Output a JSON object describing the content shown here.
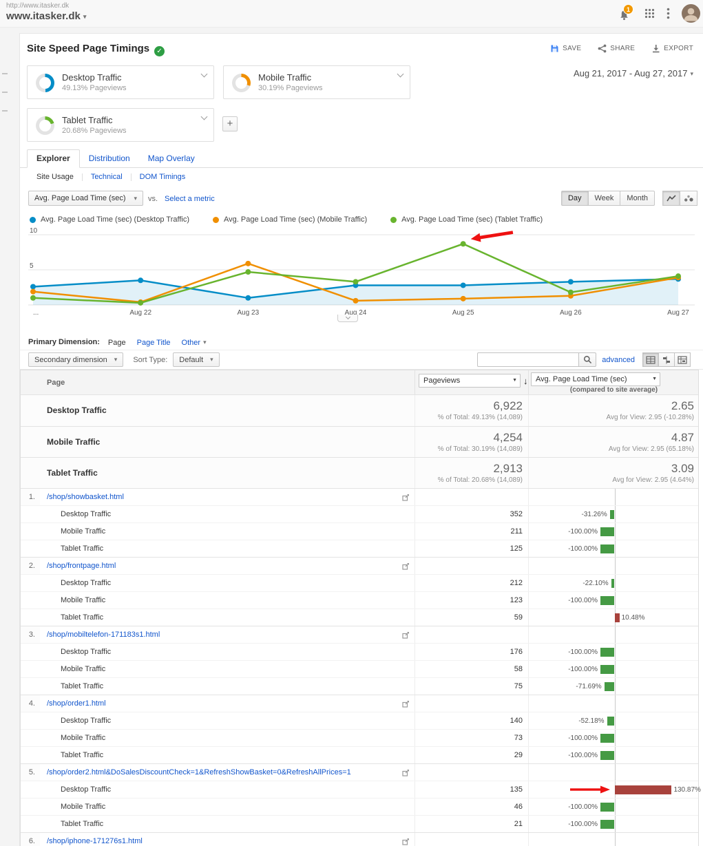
{
  "topbar": {
    "url": "http://www.itasker.dk",
    "account_name": "www.itasker.dk",
    "notification_count": "1"
  },
  "report": {
    "title": "Site Speed Page Timings",
    "actions": {
      "save": "SAVE",
      "share": "SHARE",
      "export": "EXPORT"
    },
    "date_range": "Aug 21, 2017 - Aug 27, 2017"
  },
  "segments": [
    {
      "name": "Desktop Traffic",
      "detail": "49.13% Pageviews",
      "percent": 49.13,
      "color": "#058dc7"
    },
    {
      "name": "Mobile Traffic",
      "detail": "30.19% Pageviews",
      "percent": 30.19,
      "color": "#f08f00"
    },
    {
      "name": "Tablet Traffic",
      "detail": "20.68% Pageviews",
      "percent": 20.68,
      "color": "#68b42e"
    }
  ],
  "tabs": [
    {
      "label": "Explorer",
      "active": true
    },
    {
      "label": "Distribution",
      "active": false
    },
    {
      "label": "Map Overlay",
      "active": false
    }
  ],
  "subtabs": [
    {
      "label": "Site Usage",
      "active": true
    },
    {
      "label": "Technical",
      "active": false
    },
    {
      "label": "DOM Timings",
      "active": false
    }
  ],
  "metric_bar": {
    "metric_select": "Avg. Page Load Time (sec)",
    "vs_label": "vs.",
    "select_metric_link": "Select a metric",
    "granularity": [
      {
        "label": "Day",
        "active": true
      },
      {
        "label": "Week",
        "active": false
      },
      {
        "label": "Month",
        "active": false
      }
    ]
  },
  "chart_data": {
    "type": "line",
    "x": [
      "Aug 21",
      "Aug 22",
      "Aug 23",
      "Aug 24",
      "Aug 25",
      "Aug 26",
      "Aug 27"
    ],
    "x_tick_labels": [
      "...",
      "Aug 22",
      "Aug 23",
      "Aug 24",
      "Aug 25",
      "Aug 26",
      "Aug 27"
    ],
    "ylim": [
      0,
      10
    ],
    "yticks": [
      5,
      10
    ],
    "series": [
      {
        "name": "Avg. Page Load Time (sec) (Desktop Traffic)",
        "color": "#058dc7",
        "area": true,
        "values": [
          2.6,
          3.5,
          1.0,
          2.8,
          2.8,
          3.3,
          3.7
        ]
      },
      {
        "name": "Avg. Page Load Time (sec) (Mobile Traffic)",
        "color": "#f08f00",
        "area": false,
        "values": [
          1.9,
          0.4,
          5.9,
          0.6,
          0.9,
          1.3,
          3.9
        ]
      },
      {
        "name": "Avg. Page Load Time (sec) (Tablet Traffic)",
        "color": "#68b42e",
        "area": false,
        "values": [
          1.0,
          0.3,
          4.7,
          3.3,
          8.7,
          1.8,
          4.1
        ]
      }
    ],
    "annotation": {
      "type": "arrow",
      "series": 2,
      "point": 4,
      "color": "#ee1111"
    }
  },
  "primary_dimension": {
    "label": "Primary Dimension:",
    "options": [
      {
        "label": "Page",
        "active": true,
        "caret": false
      },
      {
        "label": "Page Title",
        "active": false,
        "caret": false
      },
      {
        "label": "Other",
        "active": false,
        "caret": true
      }
    ]
  },
  "table_toolbar": {
    "secondary_dimension": "Secondary dimension",
    "sort_type_label": "Sort Type:",
    "sort_type_value": "Default",
    "search_value": "",
    "advanced_link": "advanced"
  },
  "table": {
    "columns": {
      "page": "Page",
      "pageviews": "Pageviews",
      "metric": "Avg. Page Load Time (sec)",
      "metric_note": "(compared to site average)"
    },
    "summary_rows": [
      {
        "name": "Desktop Traffic",
        "pageviews": "6,922",
        "pageviews_note": "% of Total: 49.13% (14,089)",
        "metric": "2.65",
        "metric_note": "Avg for View: 2.95 (-10.28%)"
      },
      {
        "name": "Mobile Traffic",
        "pageviews": "4,254",
        "pageviews_note": "% of Total: 30.19% (14,089)",
        "metric": "4.87",
        "metric_note": "Avg for View: 2.95 (65.18%)"
      },
      {
        "name": "Tablet Traffic",
        "pageviews": "2,913",
        "pageviews_note": "% of Total: 20.68% (14,089)",
        "metric": "3.09",
        "metric_note": "Avg for View: 2.95 (4.64%)"
      }
    ],
    "rows": [
      {
        "index": "1.",
        "page": "/shop/showbasket.html",
        "segments": [
          {
            "name": "Desktop Traffic",
            "pageviews": "352",
            "pct": -31.26,
            "pct_label": "-31.26%"
          },
          {
            "name": "Mobile Traffic",
            "pageviews": "211",
            "pct": -100.0,
            "pct_label": "-100.00%"
          },
          {
            "name": "Tablet Traffic",
            "pageviews": "125",
            "pct": -100.0,
            "pct_label": "-100.00%"
          }
        ]
      },
      {
        "index": "2.",
        "page": "/shop/frontpage.html",
        "segments": [
          {
            "name": "Desktop Traffic",
            "pageviews": "212",
            "pct": -22.1,
            "pct_label": "-22.10%"
          },
          {
            "name": "Mobile Traffic",
            "pageviews": "123",
            "pct": -100.0,
            "pct_label": "-100.00%"
          },
          {
            "name": "Tablet Traffic",
            "pageviews": "59",
            "pct": 10.48,
            "pct_label": "10.48%"
          }
        ]
      },
      {
        "index": "3.",
        "page": "/shop/mobiltelefon-171183s1.html",
        "segments": [
          {
            "name": "Desktop Traffic",
            "pageviews": "176",
            "pct": -100.0,
            "pct_label": "-100.00%"
          },
          {
            "name": "Mobile Traffic",
            "pageviews": "58",
            "pct": -100.0,
            "pct_label": "-100.00%"
          },
          {
            "name": "Tablet Traffic",
            "pageviews": "75",
            "pct": -71.69,
            "pct_label": "-71.69%"
          }
        ]
      },
      {
        "index": "4.",
        "page": "/shop/order1.html",
        "segments": [
          {
            "name": "Desktop Traffic",
            "pageviews": "140",
            "pct": -52.18,
            "pct_label": "-52.18%"
          },
          {
            "name": "Mobile Traffic",
            "pageviews": "73",
            "pct": -100.0,
            "pct_label": "-100.00%"
          },
          {
            "name": "Tablet Traffic",
            "pageviews": "29",
            "pct": -100.0,
            "pct_label": "-100.00%"
          }
        ]
      },
      {
        "index": "5.",
        "page": "/shop/order2.html&DoSalesDiscountCheck=1&RefreshShowBasket=0&RefreshAllPrices=1",
        "segments": [
          {
            "name": "Desktop Traffic",
            "pageviews": "135",
            "pct": 130.87,
            "pct_label": "130.87%",
            "arrow": true
          },
          {
            "name": "Mobile Traffic",
            "pageviews": "46",
            "pct": -100.0,
            "pct_label": "-100.00%"
          },
          {
            "name": "Tablet Traffic",
            "pageviews": "21",
            "pct": -100.0,
            "pct_label": "-100.00%"
          }
        ]
      },
      {
        "index": "6.",
        "page": "/shop/iphone-171276s1.html",
        "segments": []
      }
    ]
  },
  "icons": {
    "caret": "▾",
    "select_caret": "▼",
    "sort_desc": "↓",
    "add": "+",
    "check": "✓"
  },
  "colors": {
    "link": "#1155cc",
    "bar_negative": "#459a44",
    "bar_positive": "#a8423c",
    "annotation_arrow": "#ee1111",
    "badge": "#f29900"
  }
}
